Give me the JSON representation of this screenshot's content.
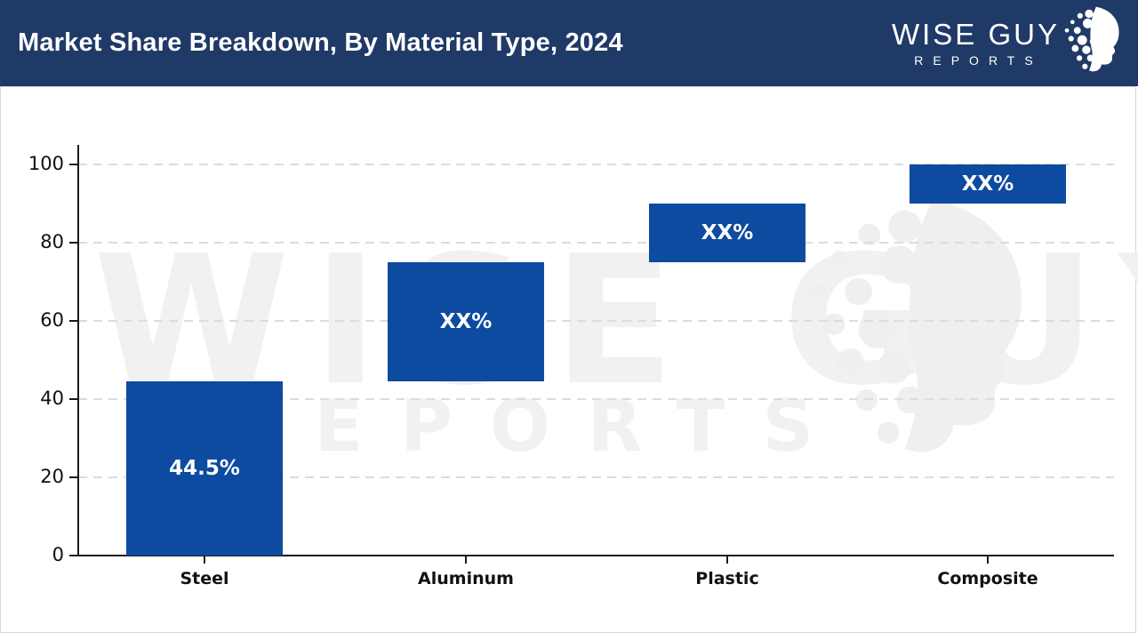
{
  "header": {
    "title": "Market Share Breakdown, By Material Type, 2024",
    "logo": {
      "name": "WISE GUY",
      "sub": "REPORTS",
      "icon": "dotted-head-profile-icon"
    }
  },
  "watermark": {
    "line1": "WISE GUY",
    "line2": "REPORTS",
    "icon": "dotted-head-profile-icon"
  },
  "colors": {
    "header_bg": "#203a67",
    "bar": "#0c4b9f",
    "bar_label": "#ffffff",
    "axis": "#1a1a1a",
    "grid": "#dcdcdc",
    "watermark": "#f1f1f1",
    "card_border": "#d6d6d6"
  },
  "chart_data": {
    "type": "bar",
    "subtype": "waterfall",
    "title": "Market Share Breakdown, By Material Type, 2024",
    "categories": [
      "Steel",
      "Aluminum",
      "Plastic",
      "Composite"
    ],
    "segments": [
      {
        "category": "Steel",
        "start": 0,
        "end": 44.5,
        "label": "44.5%"
      },
      {
        "category": "Aluminum",
        "start": 44.5,
        "end": 75,
        "label": "XX%"
      },
      {
        "category": "Plastic",
        "start": 75,
        "end": 90,
        "label": "XX%"
      },
      {
        "category": "Composite",
        "start": 90,
        "end": 100,
        "label": "XX%"
      }
    ],
    "yticks": [
      0,
      20,
      40,
      60,
      80,
      100
    ],
    "ylim": [
      0,
      105
    ],
    "xlabel": "",
    "ylabel": "",
    "grid": {
      "horizontal": true,
      "style": "dashed"
    },
    "legend": "none"
  }
}
